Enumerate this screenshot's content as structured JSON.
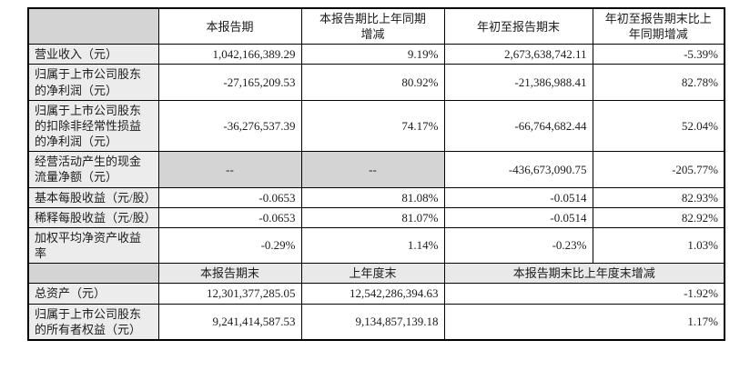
{
  "page": {
    "background": "#ffffff"
  },
  "table": {
    "columns_top": [
      "",
      "本报告期",
      "本报告期比上年同期增减",
      "年初至报告期末",
      "年初至报告期末比上年同期增减"
    ],
    "rows_top": [
      {
        "label": "营业收入（元）",
        "values": [
          "1,042,166,389.29",
          "9.19%",
          "2,673,638,742.11",
          "-5.39%"
        ],
        "dash_cells": []
      },
      {
        "label": "归属于上市公司股东的净利润（元）",
        "values": [
          "-27,165,209.53",
          "80.92%",
          "-21,386,988.41",
          "82.78%"
        ],
        "dash_cells": []
      },
      {
        "label": "归属于上市公司股东的扣除非经常性损益的净利润（元）",
        "values": [
          "-36,276,537.39",
          "74.17%",
          "-66,764,682.44",
          "52.04%"
        ],
        "dash_cells": []
      },
      {
        "label": "经营活动产生的现金流量净额（元）",
        "values": [
          "--",
          "--",
          "-436,673,090.75",
          "-205.77%"
        ],
        "dash_cells": [
          0,
          1
        ]
      },
      {
        "label": "基本每股收益（元/股）",
        "values": [
          "-0.0653",
          "81.08%",
          "-0.0514",
          "82.93%"
        ],
        "dash_cells": []
      },
      {
        "label": "稀释每股收益（元/股）",
        "values": [
          "-0.0653",
          "81.07%",
          "-0.0514",
          "82.92%"
        ],
        "dash_cells": []
      },
      {
        "label": "加权平均净资产收益率",
        "values": [
          "-0.29%",
          "1.14%",
          "-0.23%",
          "1.03%"
        ],
        "dash_cells": []
      }
    ],
    "columns_bottom": [
      "",
      "本报告期末",
      "上年度末",
      "本报告期末比上年度末增减"
    ],
    "rows_bottom": [
      {
        "label": "总资产（元）",
        "values": [
          "12,301,377,285.05",
          "12,542,286,394.63",
          "-1.92%"
        ]
      },
      {
        "label": "归属于上市公司股东的所有者权益（元）",
        "values": [
          "9,241,414,587.53",
          "9,134,857,139.18",
          "1.17%"
        ]
      }
    ],
    "colors": {
      "border": "#000000",
      "label_cell_bg": "#ececec",
      "shaded_cell_bg": "#d4d4d4",
      "section_header_bg": "#e9e9e9",
      "data_cell_bg": "#ffffff"
    }
  }
}
